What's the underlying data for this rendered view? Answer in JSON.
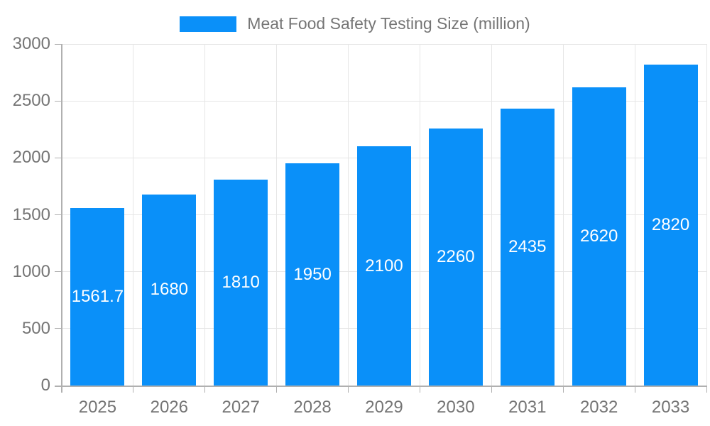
{
  "chart_data": {
    "type": "bar",
    "title": "Meat Food Safety Testing Size (million)",
    "categories": [
      "2025",
      "2026",
      "2027",
      "2028",
      "2029",
      "2030",
      "2031",
      "2032",
      "2033"
    ],
    "values": [
      1561.7,
      1680,
      1810,
      1950,
      2100,
      2260,
      2435,
      2620,
      2820
    ],
    "xlabel": "",
    "ylabel": "",
    "ylim": [
      0,
      3000
    ],
    "y_ticks": [
      0,
      500,
      1000,
      1500,
      2000,
      2500,
      3000
    ],
    "grid": true,
    "legend_position": "top",
    "colors": {
      "bar": "#0a90f9",
      "value_label": "#ffffff",
      "axis_text": "#757575",
      "grid_line": "#e6e6e6",
      "axis_line": "#b0b0b0",
      "background": "#ffffff"
    }
  }
}
